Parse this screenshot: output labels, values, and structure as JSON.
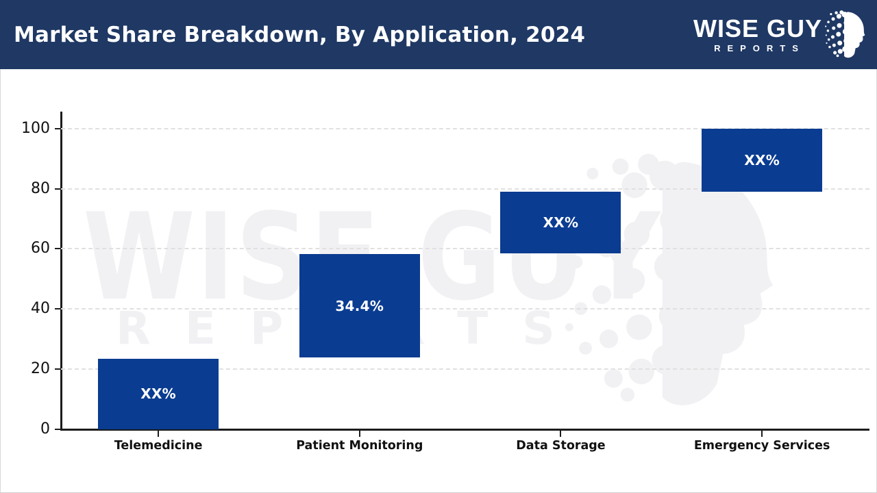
{
  "header": {
    "title": "Market Share Breakdown, By Application, 2024",
    "logo": {
      "line1": "WISE GUY",
      "line2": "REPORTS"
    }
  },
  "watermark": {
    "line1": "WISE GUY",
    "line2": "REPORTS"
  },
  "colors": {
    "header_bg": "#1f3864",
    "bar": "#0a3c91",
    "bar_label": "#ffffff",
    "axis": "#1c1c1c",
    "gridline": "#e0e0e0",
    "watermark": "#f1f1f4"
  },
  "chart_data": {
    "type": "bar",
    "variant": "waterfall-floating-bars",
    "title": "Market Share Breakdown, By Application, 2024",
    "categories": [
      "Telemedicine",
      "Patient Monitoring",
      "Data Storage",
      "Emergency Services"
    ],
    "segments": [
      {
        "category": "Telemedicine",
        "from": 0,
        "to": 23.5,
        "label": "XX%"
      },
      {
        "category": "Patient Monitoring",
        "from": 23.8,
        "to": 58.2,
        "label": "34.4%"
      },
      {
        "category": "Data Storage",
        "from": 58.5,
        "to": 79.0,
        "label": "XX%"
      },
      {
        "category": "Emergency Services",
        "from": 79.0,
        "to": 100.0,
        "label": "XX%"
      }
    ],
    "y_ticks": [
      0,
      20,
      40,
      60,
      80,
      100
    ],
    "ylim": [
      0,
      105
    ],
    "xlabel": "",
    "ylabel": "",
    "grid": "horizontal-dashed",
    "legend": "none",
    "bar_labels_inside": true
  }
}
